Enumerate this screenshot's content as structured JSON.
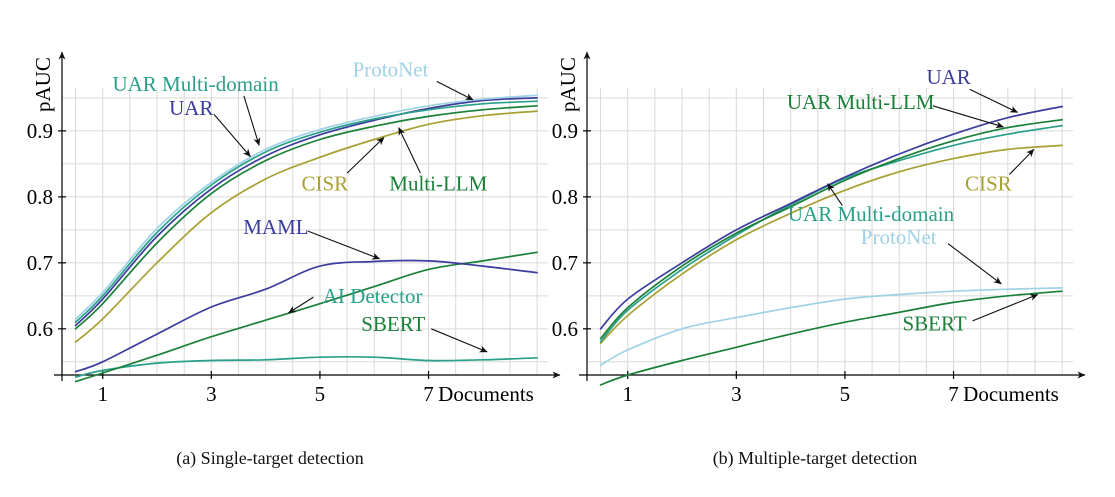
{
  "figure": {
    "captions": {
      "left": "(a) Single-target detection",
      "right": "(b) Multiple-target detection"
    }
  },
  "colors": {
    "navy": "#3c3c9e",
    "teal": "#2aa08a",
    "lightblue": "#9fd2e6",
    "olive": "#a8a032",
    "green": "#1a8038"
  },
  "chart_data": [
    {
      "type": "line",
      "title": "(a) Single-target detection",
      "xlabel": "Documents",
      "ylabel": "pAUC",
      "x": [
        0.5,
        1,
        2,
        3,
        4,
        5,
        6,
        7,
        8,
        9
      ],
      "xlim": [
        0.25,
        9.2
      ],
      "ylim": [
        0.53,
        0.965
      ],
      "xticks": [
        1,
        3,
        5,
        7
      ],
      "yticks": [
        0.6,
        0.7,
        0.8,
        0.9
      ],
      "grid": {
        "x_start": 0.5,
        "x_step": 0.5,
        "x_end": 9.0,
        "y_start": 0.55,
        "y_step": 0.05,
        "y_end": 0.95
      },
      "series": [
        {
          "name": "AI Detector",
          "color": "#2aa08a",
          "values": [
            0.527,
            0.537,
            0.548,
            0.552,
            0.553,
            0.557,
            0.557,
            0.552,
            0.553,
            0.556
          ]
        },
        {
          "name": "SBERT",
          "color": "#1a8038",
          "values": [
            0.52,
            0.533,
            0.56,
            0.588,
            0.613,
            0.638,
            0.664,
            0.69,
            0.703,
            0.716
          ]
        },
        {
          "name": "MAML",
          "color": "#3c3c9e",
          "values": [
            0.535,
            0.55,
            0.592,
            0.633,
            0.66,
            0.695,
            0.702,
            0.703,
            0.695,
            0.685
          ]
        },
        {
          "name": "CISR",
          "color": "#a8a032",
          "values": [
            0.58,
            0.615,
            0.7,
            0.776,
            0.827,
            0.86,
            0.887,
            0.91,
            0.923,
            0.93
          ]
        },
        {
          "name": "Multi-LLM",
          "color": "#1a8038",
          "values": [
            0.6,
            0.638,
            0.73,
            0.805,
            0.855,
            0.887,
            0.907,
            0.922,
            0.932,
            0.938
          ]
        },
        {
          "name": "UAR",
          "color": "#3c3c9e",
          "values": [
            0.605,
            0.645,
            0.74,
            0.812,
            0.862,
            0.894,
            0.916,
            0.934,
            0.946,
            0.95
          ]
        },
        {
          "name": "UAR Multi-domain",
          "color": "#2aa08a",
          "values": [
            0.61,
            0.65,
            0.746,
            0.818,
            0.868,
            0.898,
            0.918,
            0.932,
            0.941,
            0.945
          ]
        },
        {
          "name": "ProtoNet",
          "color": "#9fd2e6",
          "values": [
            0.615,
            0.655,
            0.752,
            0.822,
            0.872,
            0.902,
            0.922,
            0.938,
            0.948,
            0.954
          ]
        }
      ],
      "annotations": [
        {
          "label": "UAR Multi-domain",
          "color": "#2aa08a",
          "tx": 2.71,
          "ty": 0.971,
          "anchor": "middle",
          "arrow": [
            3.6,
            0.953,
            3.88,
            0.878
          ]
        },
        {
          "label": "UAR",
          "color": "#3c3c9e",
          "tx": 2.63,
          "ty": 0.935,
          "anchor": "middle",
          "arrow": [
            3.05,
            0.925,
            3.72,
            0.861
          ]
        },
        {
          "label": "ProtoNet",
          "color": "#9fd2e6",
          "tx": 6.3,
          "ty": 0.993,
          "anchor": "middle",
          "arrow": [
            7.15,
            0.975,
            7.82,
            0.947
          ]
        },
        {
          "label": "CISR",
          "color": "#a8a032",
          "tx": 5.09,
          "ty": 0.82,
          "anchor": "middle",
          "arrow": [
            5.5,
            0.836,
            6.18,
            0.89
          ]
        },
        {
          "label": "Multi-LLM",
          "color": "#1a8038",
          "tx": 7.18,
          "ty": 0.82,
          "anchor": "middle",
          "arrow": [
            6.85,
            0.836,
            6.45,
            0.905
          ]
        },
        {
          "label": "MAML",
          "color": "#3c3c9e",
          "tx": 4.19,
          "ty": 0.754,
          "anchor": "middle",
          "arrow": [
            4.78,
            0.748,
            6.1,
            0.706
          ]
        },
        {
          "label": "AI Detector",
          "color": "#2aa08a",
          "tx": 5.97,
          "ty": 0.65,
          "anchor": "middle",
          "arrow": [
            4.88,
            0.648,
            4.42,
            0.624
          ]
        },
        {
          "label": "SBERT",
          "color": "#1a8038",
          "tx": 6.35,
          "ty": 0.607,
          "anchor": "middle",
          "arrow": [
            7.05,
            0.6,
            8.08,
            0.565
          ]
        }
      ]
    },
    {
      "type": "line",
      "title": "(b) Multiple-target detection",
      "xlabel": "Documents",
      "ylabel": "pAUC",
      "x": [
        0.5,
        1,
        2,
        3,
        4,
        5,
        6,
        7,
        8,
        9
      ],
      "xlim": [
        0.25,
        9.2
      ],
      "ylim": [
        0.53,
        0.965
      ],
      "xticks": [
        1,
        3,
        5,
        7
      ],
      "yticks": [
        0.6,
        0.7,
        0.8,
        0.9
      ],
      "grid": {
        "x_start": 0.5,
        "x_step": 0.5,
        "x_end": 9.0,
        "y_start": 0.55,
        "y_step": 0.05,
        "y_end": 0.95
      },
      "series": [
        {
          "name": "SBERT",
          "color": "#1a8038",
          "values": [
            0.515,
            0.53,
            0.552,
            0.572,
            0.592,
            0.61,
            0.625,
            0.64,
            0.65,
            0.657
          ]
        },
        {
          "name": "ProtoNet",
          "color": "#9fd2e6",
          "values": [
            0.545,
            0.568,
            0.6,
            0.617,
            0.632,
            0.645,
            0.652,
            0.657,
            0.66,
            0.662
          ]
        },
        {
          "name": "CISR",
          "color": "#a8a032",
          "values": [
            0.578,
            0.62,
            0.683,
            0.735,
            0.775,
            0.81,
            0.838,
            0.858,
            0.872,
            0.878
          ]
        },
        {
          "name": "UAR Multi-domain",
          "color": "#2aa08a",
          "values": [
            0.58,
            0.628,
            0.69,
            0.742,
            0.788,
            0.828,
            0.855,
            0.878,
            0.895,
            0.908
          ]
        },
        {
          "name": "UAR Multi-LLM",
          "color": "#1a8038",
          "values": [
            0.585,
            0.632,
            0.695,
            0.745,
            0.785,
            0.825,
            0.858,
            0.885,
            0.905,
            0.917
          ]
        },
        {
          "name": "UAR",
          "color": "#3c3c9e",
          "values": [
            0.6,
            0.645,
            0.7,
            0.75,
            0.79,
            0.83,
            0.865,
            0.895,
            0.92,
            0.937
          ]
        }
      ],
      "annotations": [
        {
          "label": "UAR",
          "color": "#3c3c9e",
          "tx": 6.91,
          "ty": 0.982,
          "anchor": "middle",
          "arrow": [
            7.3,
            0.963,
            8.18,
            0.928
          ]
        },
        {
          "label": "UAR Multi-LLM",
          "color": "#1a8038",
          "tx": 5.29,
          "ty": 0.944,
          "anchor": "middle",
          "arrow": [
            6.62,
            0.938,
            7.92,
            0.906
          ]
        },
        {
          "label": "CISR",
          "color": "#a8a032",
          "tx": 7.64,
          "ty": 0.82,
          "anchor": "middle",
          "arrow": [
            8.03,
            0.834,
            8.48,
            0.872
          ]
        },
        {
          "label": "UAR Multi-domain",
          "color": "#2aa08a",
          "tx": 5.48,
          "ty": 0.774,
          "anchor": "middle",
          "arrow": [
            4.95,
            0.787,
            4.68,
            0.82
          ]
        },
        {
          "label": "ProtoNet",
          "color": "#9fd2e6",
          "tx": 5.99,
          "ty": 0.739,
          "anchor": "middle",
          "arrow": [
            6.9,
            0.729,
            7.88,
            0.668
          ]
        },
        {
          "label": "SBERT",
          "color": "#1a8038",
          "tx": 6.65,
          "ty": 0.608,
          "anchor": "middle",
          "arrow": [
            7.35,
            0.612,
            8.55,
            0.652
          ]
        }
      ]
    }
  ]
}
